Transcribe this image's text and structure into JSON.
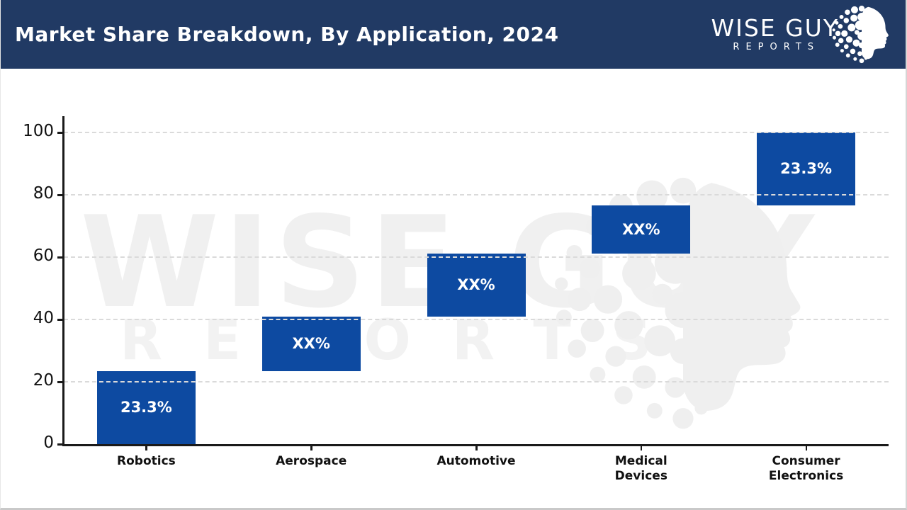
{
  "header": {
    "title": "Market Share Breakdown, By Application, 2024"
  },
  "logo": {
    "line1": "WISE GUY",
    "line2": "REPORTS"
  },
  "watermark": {
    "line1": "WISE GUY",
    "line2": "REPORTS"
  },
  "colors": {
    "header_bg": "#213a64",
    "bar": "#0d4aa1",
    "grid": "#dadada",
    "axis": "#1a1a1a",
    "watermark": "#f0f0f0",
    "bar_label": "#ffffff"
  },
  "chart_data": {
    "type": "bar",
    "subtype": "floating-waterfall",
    "title": "Market Share Breakdown, By Application, 2024",
    "xlabel": "",
    "ylabel": "",
    "categories": [
      "Robotics",
      "Aerospace",
      "Automotive",
      "Medical Devices",
      "Consumer Electronics"
    ],
    "segments": [
      {
        "category": "Robotics",
        "start": 0,
        "end": 23.3,
        "label": "23.3%"
      },
      {
        "category": "Aerospace",
        "start": 23.3,
        "end": 40.8,
        "label": "XX%"
      },
      {
        "category": "Automotive",
        "start": 40.8,
        "end": 61.1,
        "label": "XX%"
      },
      {
        "category": "Medical Devices",
        "start": 61.1,
        "end": 76.7,
        "label": "XX%"
      },
      {
        "category": "Consumer Electronics",
        "start": 76.7,
        "end": 100,
        "label": "23.3%"
      }
    ],
    "y_ticks": [
      0,
      20,
      40,
      60,
      80,
      100
    ],
    "ylim": [
      0,
      105
    ],
    "grid": "horizontal-dashed",
    "legend": "none"
  }
}
